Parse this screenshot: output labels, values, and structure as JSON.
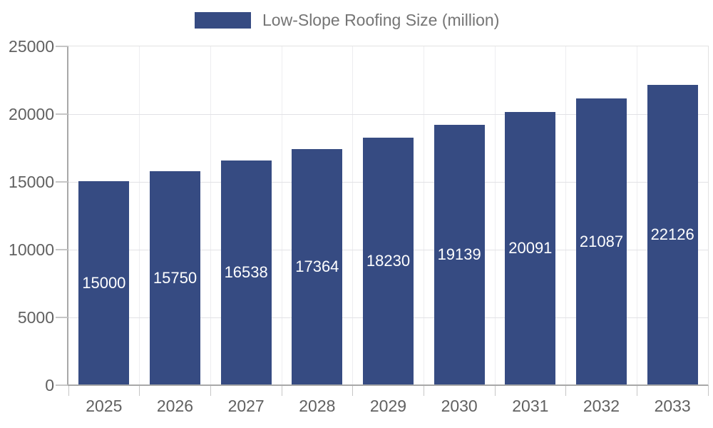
{
  "legend": {
    "label": "Low-Slope Roofing Size (million)"
  },
  "chart_data": {
    "type": "bar",
    "title": "Low-Slope Roofing Size (million)",
    "categories": [
      "2025",
      "2026",
      "2027",
      "2028",
      "2029",
      "2030",
      "2031",
      "2032",
      "2033"
    ],
    "values": [
      15000,
      15750,
      16538,
      17364,
      18230,
      19139,
      20091,
      21087,
      22126
    ],
    "series_name": "Low-Slope Roofing Size (million)",
    "xlabel": "",
    "ylabel": "",
    "ylim": [
      0,
      25000
    ],
    "yticks": [
      0,
      5000,
      10000,
      15000,
      20000,
      25000
    ],
    "grid": true,
    "legend_position": "top",
    "value_labels": "inside-center",
    "colors": {
      "bar": "#364b82",
      "value_label": "#ffffff",
      "axis_text": "#616161",
      "legend_text": "#757575",
      "axis_line": "#a8a8a8",
      "gridline": "#e2e2e6"
    }
  }
}
